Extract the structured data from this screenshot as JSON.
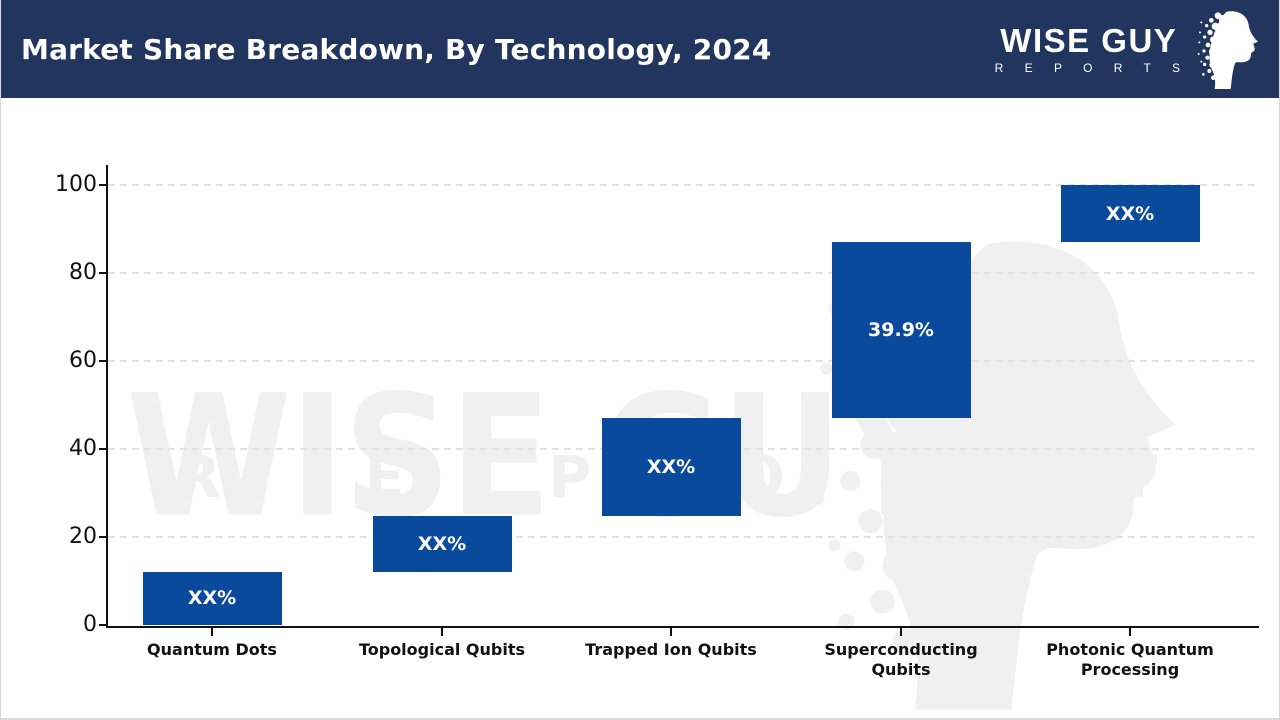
{
  "header": {
    "title": "Market Share Breakdown, By Technology, 2024",
    "bg_color": "#21355E",
    "logo": {
      "line1": "WISE GUY",
      "line2": "R E P O R T S"
    }
  },
  "watermark": {
    "line1": "WISE GUY",
    "line2": "R E P O R T S"
  },
  "chart_data": {
    "type": "bar",
    "subtype": "waterfall",
    "title": "Market Share Breakdown, By Technology, 2024",
    "categories": [
      "Quantum Dots",
      "Topological Qubits",
      "Trapped Ion Qubits",
      "Superconducting Qubits",
      "Photonic Quantum Processing"
    ],
    "segments": [
      {
        "category": "Quantum Dots",
        "start": 0,
        "end": 12.1,
        "label": "XX%"
      },
      {
        "category": "Topological Qubits",
        "start": 12.1,
        "end": 24.7,
        "label": "XX%"
      },
      {
        "category": "Trapped Ion Qubits",
        "start": 24.7,
        "end": 47.1,
        "label": "XX%"
      },
      {
        "category": "Superconducting Qubits",
        "start": 47.1,
        "end": 87.0,
        "label": "39.9%"
      },
      {
        "category": "Photonic Quantum Processing",
        "start": 87.0,
        "end": 99.9,
        "label": "XX%"
      }
    ],
    "ylim": [
      0,
      100
    ],
    "yticks": [
      0,
      20,
      40,
      60,
      80,
      100
    ],
    "xlabel": "",
    "ylabel": "",
    "grid": "horizontal-dashed",
    "legend": "none",
    "bar_color": "#0A4A9D",
    "bar_label_color": "#FFFFFF",
    "axis_color": "#111111",
    "gridline_color": "#E2E2E2"
  }
}
